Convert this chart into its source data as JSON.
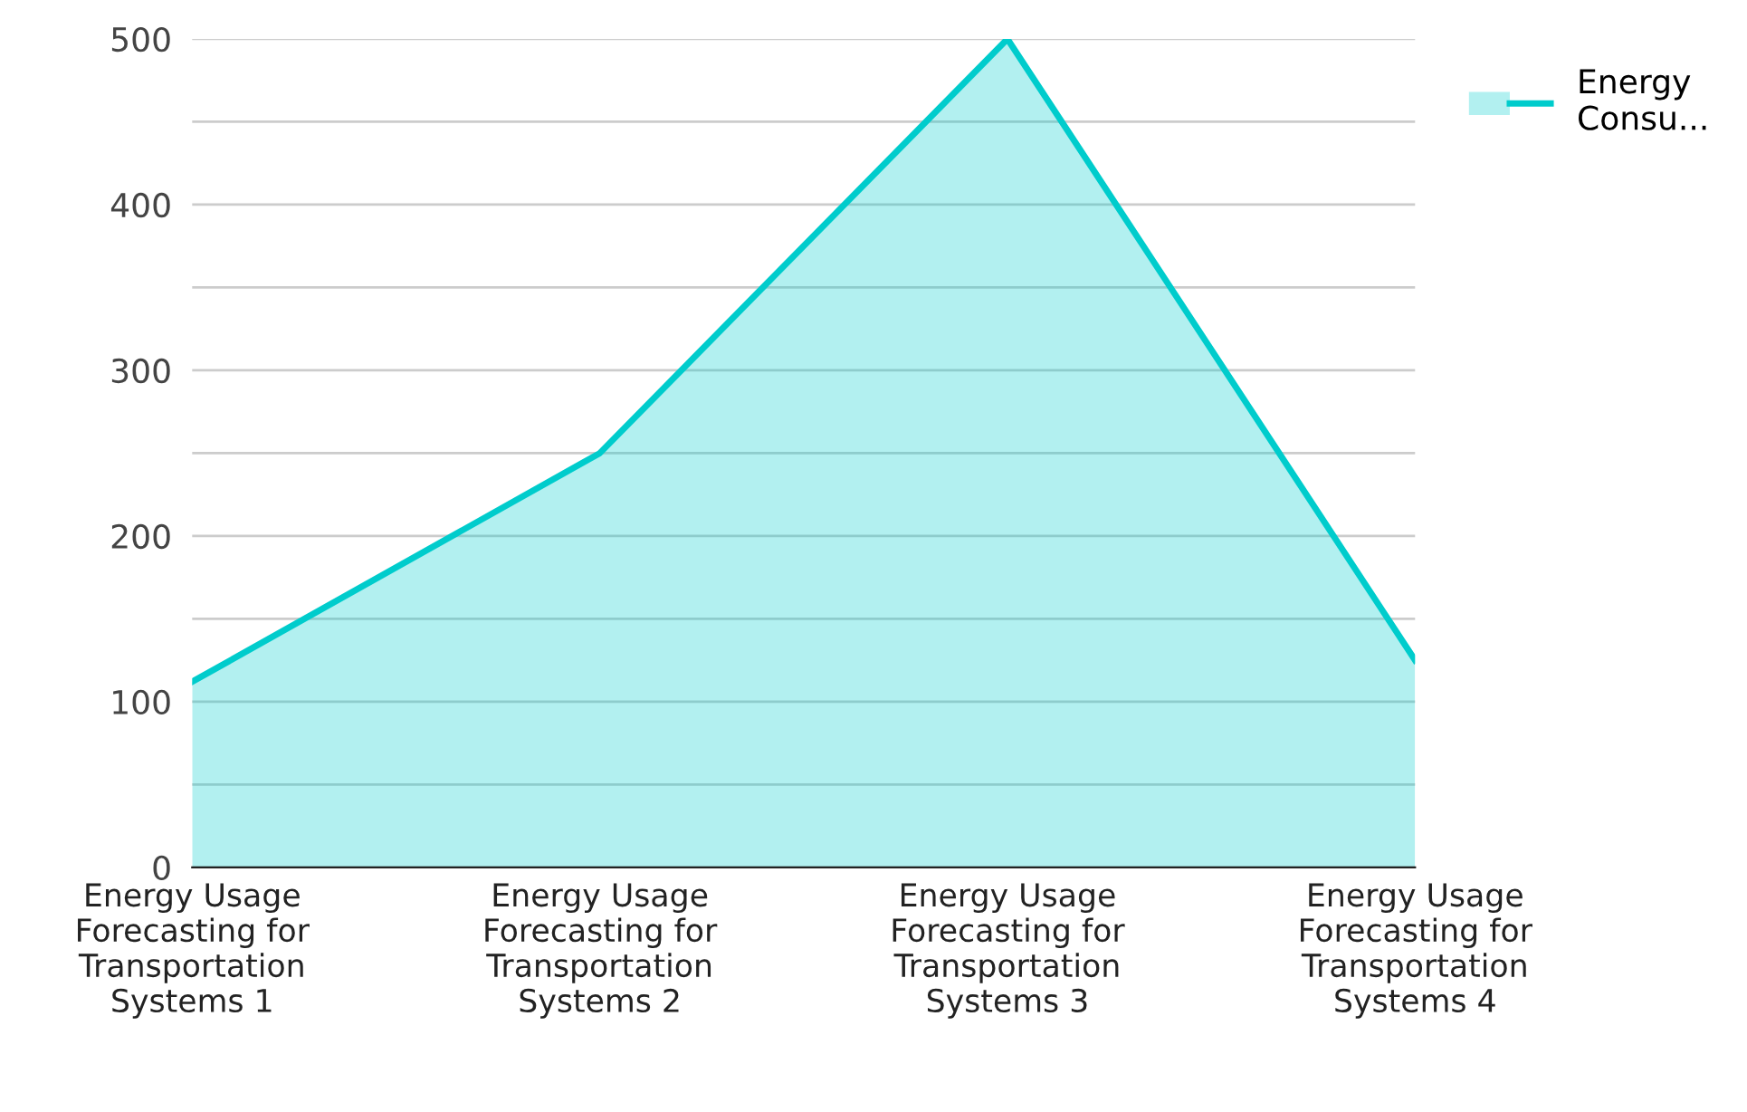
{
  "chart_data": {
    "type": "area",
    "categories": [
      "Energy Usage\nForecasting for\nTransportation\nSystems 1",
      "Energy Usage\nForecasting for\nTransportation\nSystems 2",
      "Energy Usage\nForecasting for\nTransportation\nSystems 3",
      "Energy Usage\nForecasting for\nTransportation\nSystems 4"
    ],
    "series": [
      {
        "name": "Energy\nConsu...",
        "color": "#00cccc",
        "values": [
          112,
          250,
          500,
          125
        ]
      }
    ],
    "ylim": [
      0,
      500
    ],
    "yticks": [
      0,
      {
        "value": 50,
        "label": null
      },
      100,
      {
        "value": 150,
        "label": null
      },
      200,
      {
        "value": 250,
        "label": null
      },
      300,
      {
        "value": 350,
        "label": null
      },
      400,
      {
        "value": 450,
        "label": null
      },
      500
    ],
    "grid": "y",
    "legend": "top right"
  }
}
